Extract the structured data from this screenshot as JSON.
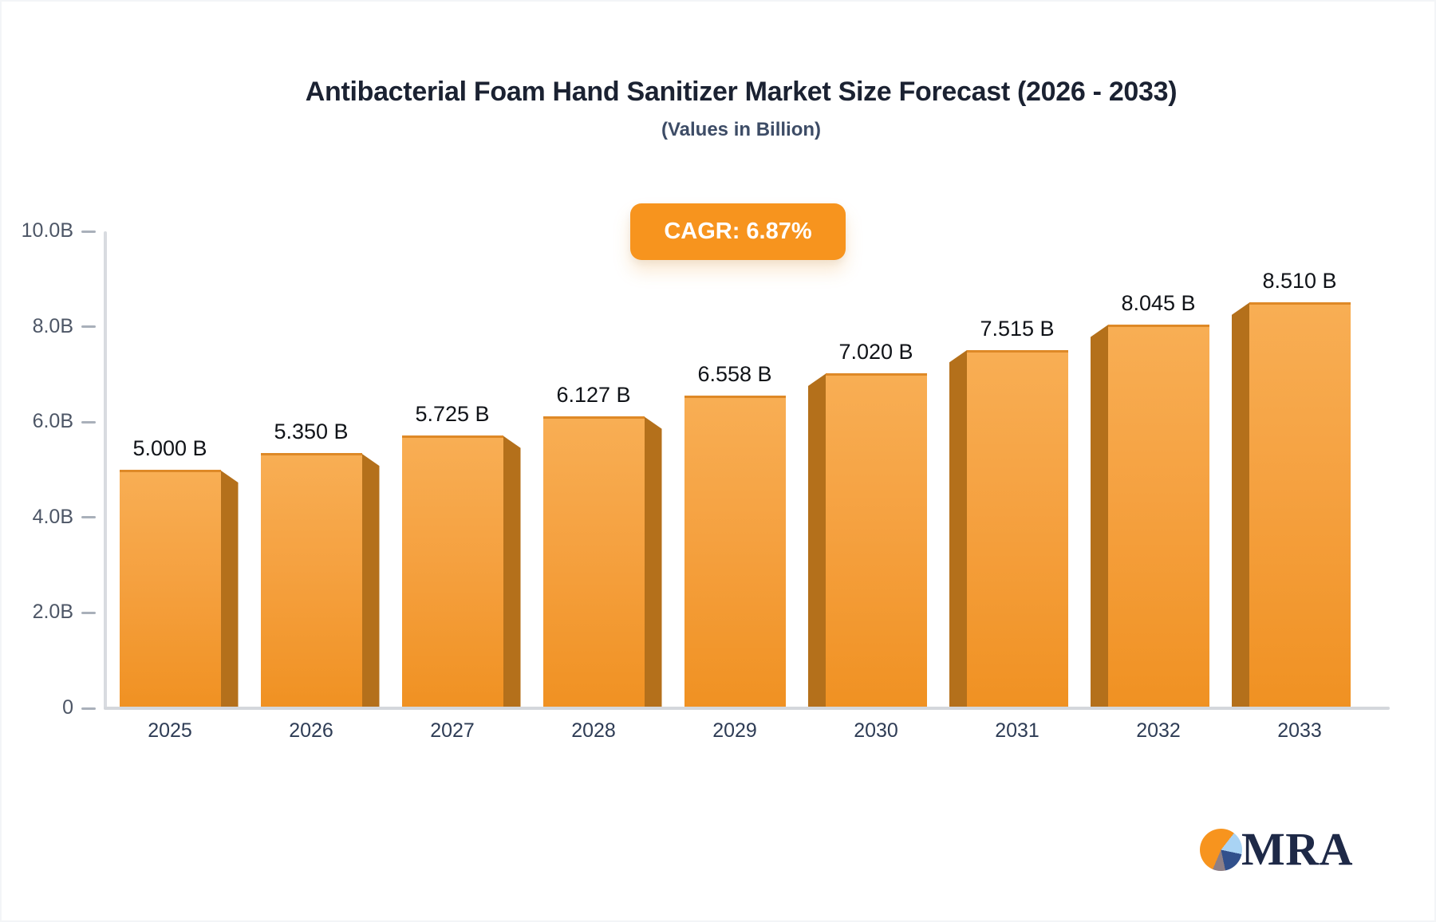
{
  "title": "Antibacterial Foam Hand Sanitizer Market Size Forecast (2026 - 2033)",
  "subtitle": "(Values in Billion)",
  "cagr_badge": "CAGR: 6.87%",
  "logo": {
    "text": "MRA",
    "icon": "pie-chart-icon"
  },
  "colors": {
    "bar_face_top": "#f8ae54",
    "bar_face_bottom": "#f09122",
    "bar_side": "#b4701b",
    "badge_bg": "#f7941e",
    "badge_text": "#ffffff",
    "title_text": "#1b2232",
    "subtitle_text": "#3d4c66",
    "axis_line": "#d6d9de",
    "y_label": "#4d5666",
    "x_label": "#2e3c55",
    "logo_navy": "#1e2947",
    "logo_light_blue": "#a9d3f4",
    "logo_orange": "#f7941e"
  },
  "chart_data": {
    "type": "bar",
    "title": "Antibacterial Foam Hand Sanitizer Market Size Forecast (2026 - 2033)",
    "subtitle": "(Values in Billion)",
    "categories": [
      "2025",
      "2026",
      "2027",
      "2028",
      "2029",
      "2030",
      "2031",
      "2032",
      "2033"
    ],
    "values": [
      5.0,
      5.35,
      5.725,
      6.127,
      6.558,
      7.02,
      7.515,
      8.045,
      8.51
    ],
    "value_labels": [
      "5.000 B",
      "5.350 B",
      "5.725 B",
      "6.127 B",
      "6.558 B",
      "7.020 B",
      "7.515 B",
      "8.045 B",
      "8.510 B"
    ],
    "xlabel": "",
    "ylabel": "",
    "ylim": [
      0,
      10
    ],
    "grid": false,
    "legend": "none",
    "yticks": [
      {
        "label": "10.0B",
        "value": 10.0
      },
      {
        "label": "8.0B",
        "value": 8.0
      },
      {
        "label": "6.0B",
        "value": 6.0
      },
      {
        "label": "4.0B",
        "value": 4.0
      },
      {
        "label": "2.0B",
        "value": 2.0
      },
      {
        "label": "0",
        "value": 0.0
      }
    ]
  }
}
